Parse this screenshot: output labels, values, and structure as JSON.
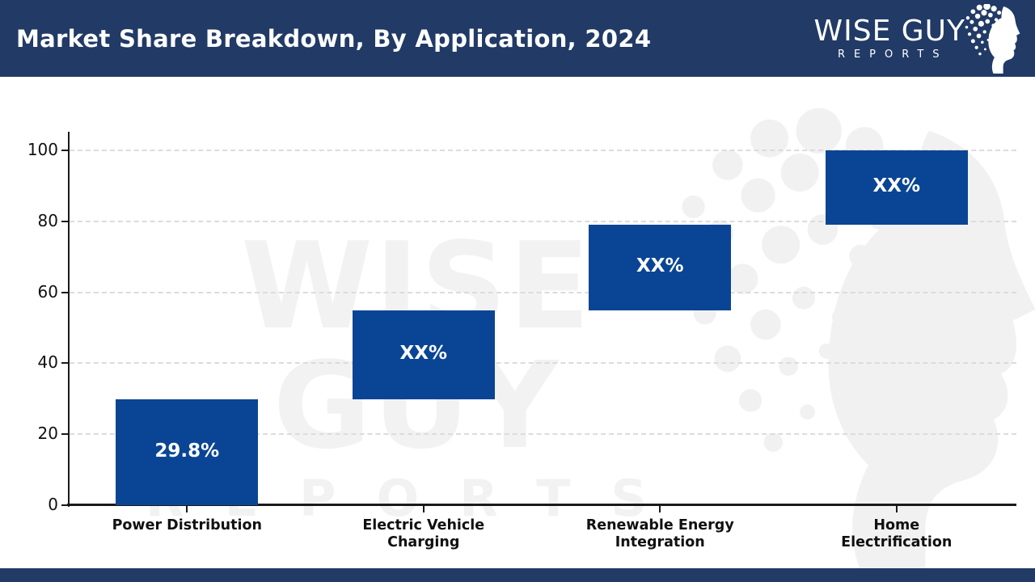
{
  "header": {
    "title": "Market Share Breakdown, By Application, 2024",
    "bg_color": "#213a66",
    "logo": {
      "line1": "WISE GUY",
      "line2": "REPORTS"
    }
  },
  "watermark": {
    "line1": "WISE GUY",
    "line2": "REPORTS"
  },
  "footer": {
    "bg_color": "#213a66"
  },
  "chart_data": {
    "type": "bar",
    "subtype": "floating-waterfall",
    "title": "Market Share Breakdown, By Application, 2024",
    "categories": [
      "Power Distribution",
      "Electric Vehicle\nCharging",
      "Renewable Energy\nIntegration",
      "Home\nElectrification"
    ],
    "segments": [
      {
        "category": "Power Distribution",
        "start": 0,
        "end": 29.8,
        "label": "29.8%"
      },
      {
        "category": "Electric Vehicle Charging",
        "start": 29.8,
        "end": 55,
        "label": "XX%"
      },
      {
        "category": "Renewable Energy Integration",
        "start": 55,
        "end": 79,
        "label": "XX%"
      },
      {
        "category": "Home Electrification",
        "start": 79,
        "end": 100,
        "label": "XX%"
      }
    ],
    "yticks": [
      0,
      20,
      40,
      60,
      80,
      100
    ],
    "ylim": [
      0,
      100
    ],
    "grid": true,
    "bar_color": "#0a4595",
    "bar_label_color": "#ffffff",
    "axis_color": "#1a1a1a",
    "grid_color": "#dcdcdc"
  }
}
